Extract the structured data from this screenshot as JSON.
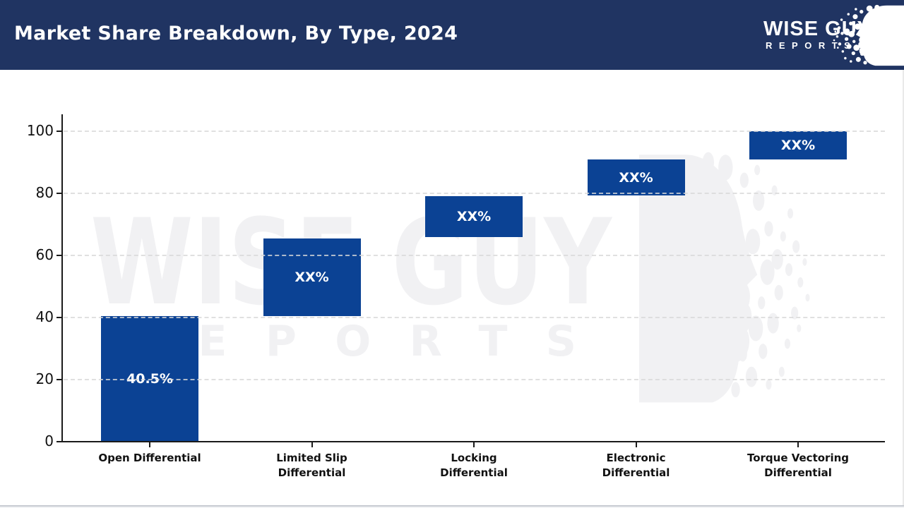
{
  "header": {
    "title": "Market Share Breakdown, By Type, 2024",
    "logo": {
      "name": "WISE GUY",
      "subtitle": "REPORTS"
    }
  },
  "watermark": {
    "line1": "WISE GUY",
    "line2": "REPORTS"
  },
  "chart_data": {
    "type": "bar",
    "subtype": "waterfall",
    "title": "Market Share Breakdown, By Type, 2024",
    "unit": "%",
    "categories": [
      "Open Differential",
      "Limited Slip Differential",
      "Locking Differential",
      "Electronic Differential",
      "Torque Vectoring Differential"
    ],
    "category_lines": [
      [
        "Open Differential"
      ],
      [
        "Limited Slip",
        "Differential"
      ],
      [
        "Locking",
        "Differential"
      ],
      [
        "Electronic",
        "Differential"
      ],
      [
        "Torque Vectoring",
        "Differential"
      ]
    ],
    "segments": [
      {
        "category": "Open Differential",
        "start": 0,
        "end": 40.5,
        "label": "40.5%"
      },
      {
        "category": "Limited Slip Differential",
        "start": 40.5,
        "end": 65.5,
        "label": "XX%"
      },
      {
        "category": "Locking Differential",
        "start": 65.8,
        "end": 79.1,
        "label": "XX%"
      },
      {
        "category": "Electronic Differential",
        "start": 79.3,
        "end": 90.9,
        "label": "XX%"
      },
      {
        "category": "Torque Vectoring Differential",
        "start": 90.9,
        "end": 100,
        "label": "XX%"
      }
    ],
    "yticks": [
      0,
      20,
      40,
      60,
      80,
      100
    ],
    "ylim": [
      0,
      105
    ],
    "xlabel": "",
    "ylabel": "",
    "grid": "horizontal-dashed",
    "legend": "none"
  },
  "colors": {
    "header_bg": "#203462",
    "bar": "#0b4294",
    "bar_label": "#ffffff",
    "grid": "#d9d9d9",
    "axis": "#1a1a1a",
    "tick_label": "#111111",
    "watermark": "#f1f1f3",
    "logo_text": "#ffffff"
  }
}
